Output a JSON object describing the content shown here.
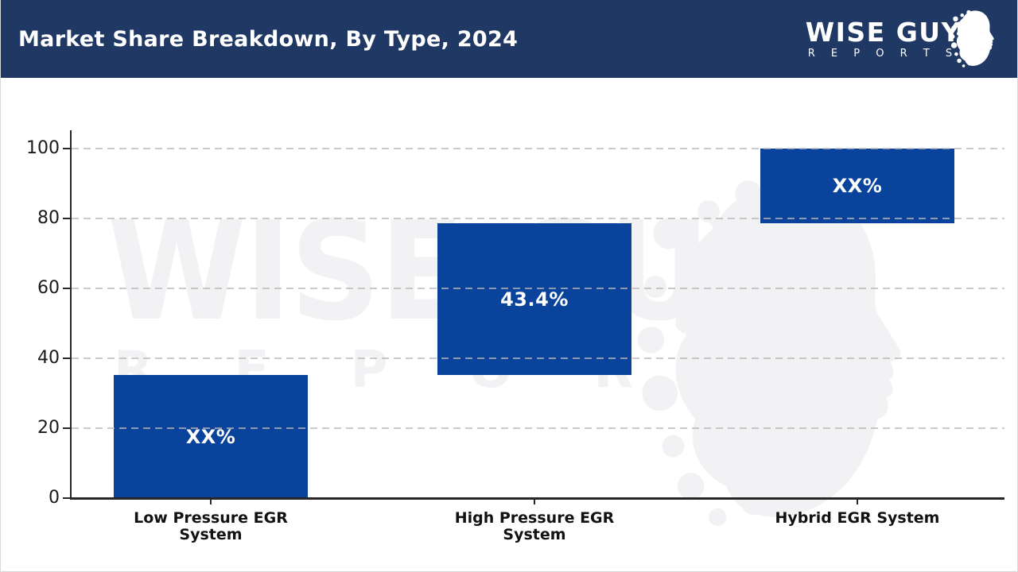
{
  "header": {
    "title": "Market Share Breakdown, By Type, 2024",
    "logo": {
      "brand_line1": "WISE GUY",
      "brand_line2": "R E P O R T S",
      "face_icon": "dotted-face-profile"
    },
    "bg_color": "#203864"
  },
  "watermark": {
    "brand_line1": "WISE GUY",
    "brand_line2": "REPORTS",
    "color": "#f2f2f4"
  },
  "chart_data": {
    "type": "bar",
    "subtype": "stacked-waterfall",
    "title": "Market Share Breakdown, By Type, 2024",
    "categories": [
      "Low Pressure EGR System",
      "High Pressure EGR System",
      "Hybrid EGR System"
    ],
    "segments": [
      {
        "category": "Low Pressure EGR System",
        "start": 0,
        "end": 35.2,
        "label": "XX%"
      },
      {
        "category": "High Pressure EGR System",
        "start": 35.2,
        "end": 78.6,
        "label": "43.4%"
      },
      {
        "category": "Hybrid EGR System",
        "start": 78.6,
        "end": 100,
        "label": "XX%"
      }
    ],
    "ylim": [
      0,
      100
    ],
    "yticks": [
      0,
      20,
      40,
      60,
      80,
      100
    ],
    "xlabel": "",
    "ylabel": "",
    "grid": {
      "horizontal": true,
      "style": "dashed"
    },
    "legend": null,
    "bar_color": "#09439b",
    "bar_label_color": "#ffffff",
    "axis_color": "#262626"
  }
}
